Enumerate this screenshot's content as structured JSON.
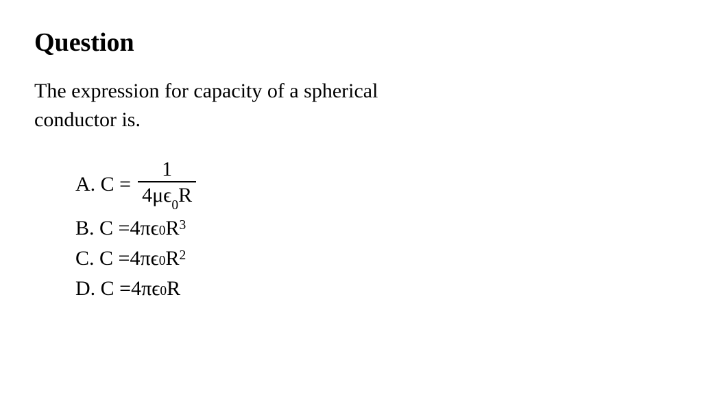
{
  "heading": "Question",
  "stem_line1": "The expression for capacity of a spherical",
  "stem_line2": "conductor is.",
  "options": {
    "A": {
      "label": "A. C =",
      "numerator": "1",
      "den_p1": "4μϵ",
      "den_sub": "0",
      "den_p2": "R"
    },
    "B": {
      "label": "B. C = ",
      "p1": "4πϵ",
      "sub": "0",
      "p2": "R",
      "sup": "3"
    },
    "C": {
      "label": "C. C = ",
      "p1": "4πϵ",
      "sub": "0",
      "p2": "R",
      "sup": "2"
    },
    "D": {
      "label": "D. C = ",
      "p1": "4πϵ",
      "sub": "0",
      "p2": "R"
    }
  }
}
